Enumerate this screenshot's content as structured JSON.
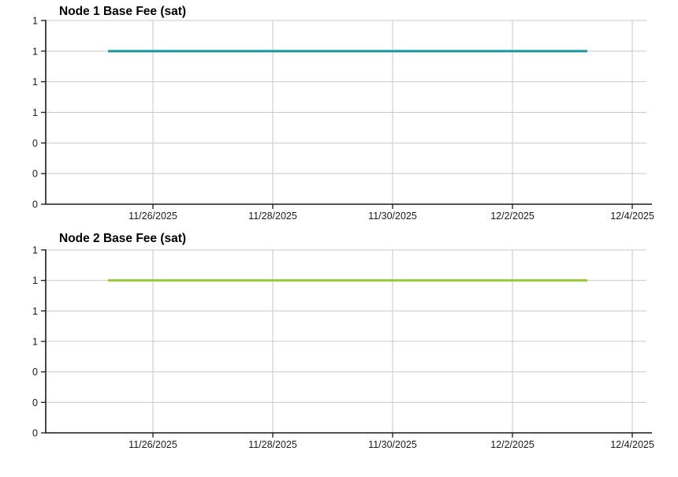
{
  "page": {
    "background_color": "#ffffff",
    "axis_color": "#1a1a1a",
    "grid_color": "#c9c9c9",
    "text_color": "#000000"
  },
  "chart_data": [
    {
      "type": "line",
      "title": "Node 1 Base Fee (sat)",
      "xlabel": "",
      "ylabel": "",
      "grid": true,
      "legend_position": "none",
      "x_tick_labels": [
        "11/26/2025",
        "11/28/2025",
        "11/30/2025",
        "12/2/2025",
        "12/4/2025"
      ],
      "y_tick_labels": [
        "1",
        "1",
        "1",
        "1",
        "0",
        "0",
        "0"
      ],
      "series": [
        {
          "name": "Node 1 Base Fee",
          "color": "#1697A0",
          "x": [
            "11/25/2025",
            "12/3/2025"
          ],
          "values": [
            1,
            1
          ],
          "constant_value": 1
        }
      ]
    },
    {
      "type": "line",
      "title": "Node 2 Base Fee (sat)",
      "xlabel": "",
      "ylabel": "",
      "grid": true,
      "legend_position": "none",
      "x_tick_labels": [
        "11/26/2025",
        "11/28/2025",
        "11/30/2025",
        "12/2/2025",
        "12/4/2025"
      ],
      "y_tick_labels": [
        "1",
        "1",
        "1",
        "1",
        "0",
        "0",
        "0"
      ],
      "series": [
        {
          "name": "Node 2 Base Fee",
          "color": "#97C93D",
          "x": [
            "11/25/2025",
            "12/3/2025"
          ],
          "values": [
            1,
            1
          ],
          "constant_value": 1
        }
      ]
    }
  ]
}
